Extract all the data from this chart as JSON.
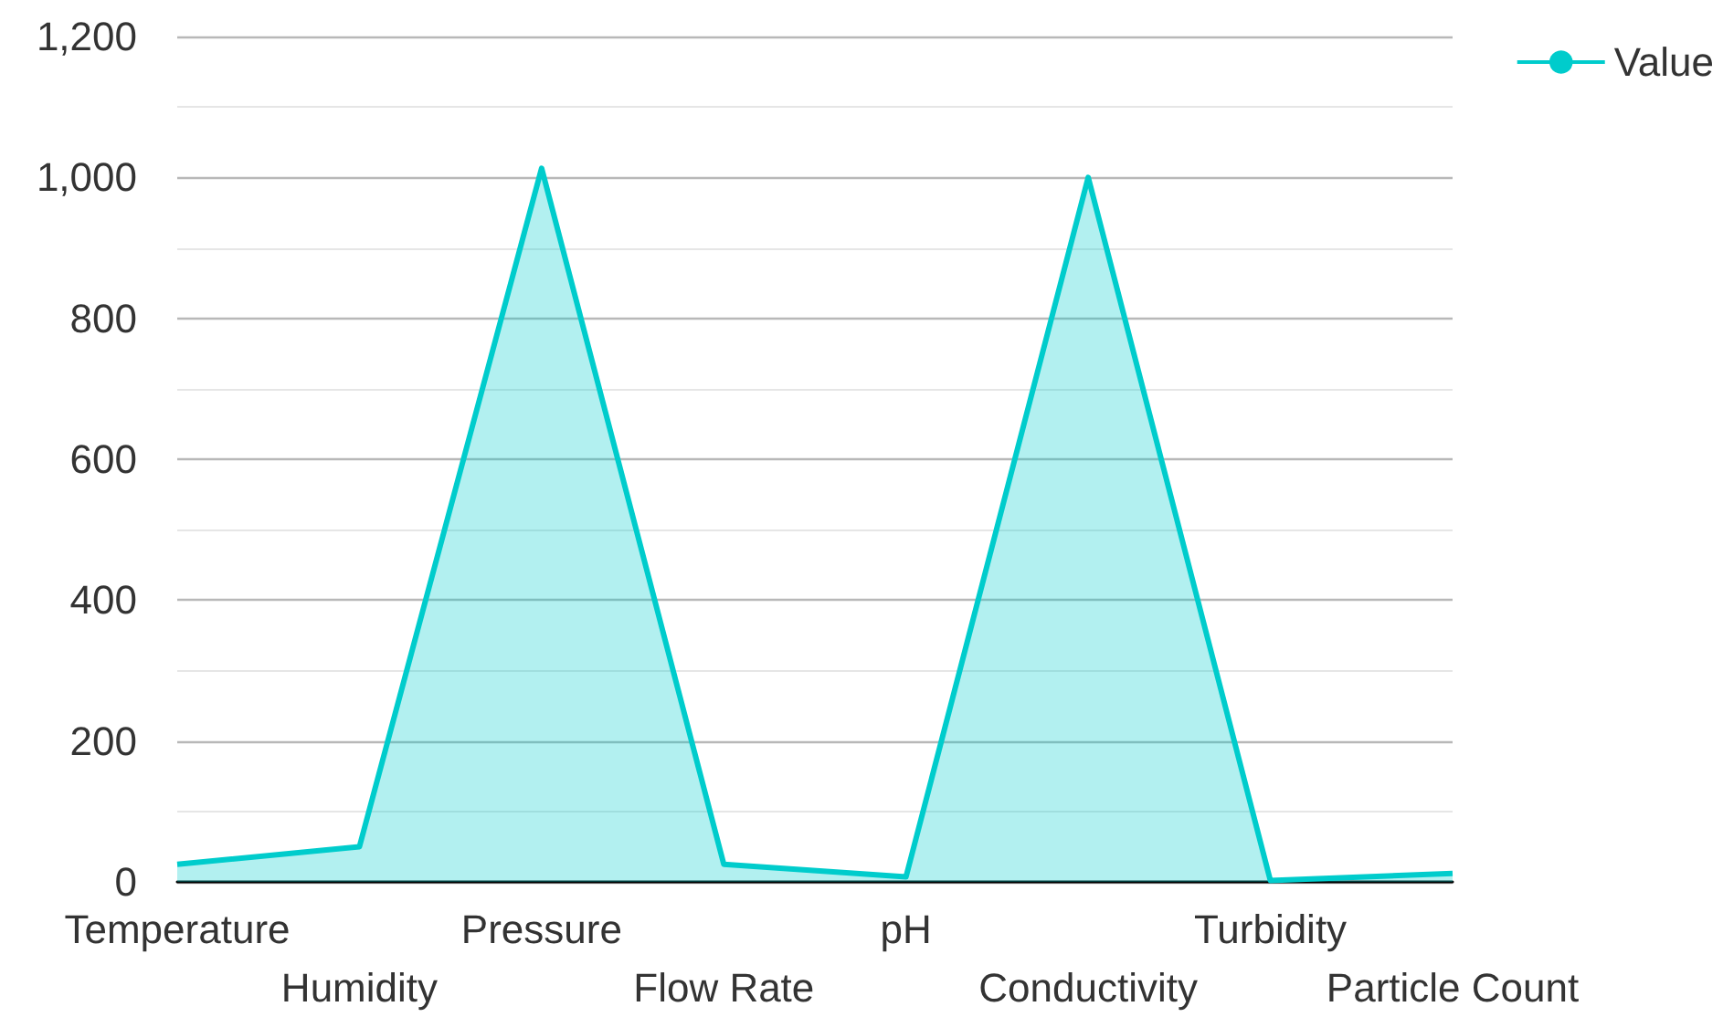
{
  "chart_data": {
    "type": "area",
    "categories": [
      "Temperature",
      "Humidity",
      "Pressure",
      "Flow Rate",
      "pH",
      "Conductivity",
      "Turbidity",
      "Particle Count"
    ],
    "series": [
      {
        "name": "Value",
        "color": "#00cccc",
        "values": [
          25,
          50,
          1013,
          25,
          7,
          1000,
          2,
          12
        ]
      }
    ],
    "ylim": [
      0,
      1200
    ],
    "yticks": [
      0,
      200,
      400,
      600,
      800,
      {
        "value": 1000,
        "label": "1,000"
      },
      {
        "value": 1200,
        "label": "1,200"
      }
    ],
    "grid": "y",
    "legend": "top right",
    "marker": "none"
  }
}
